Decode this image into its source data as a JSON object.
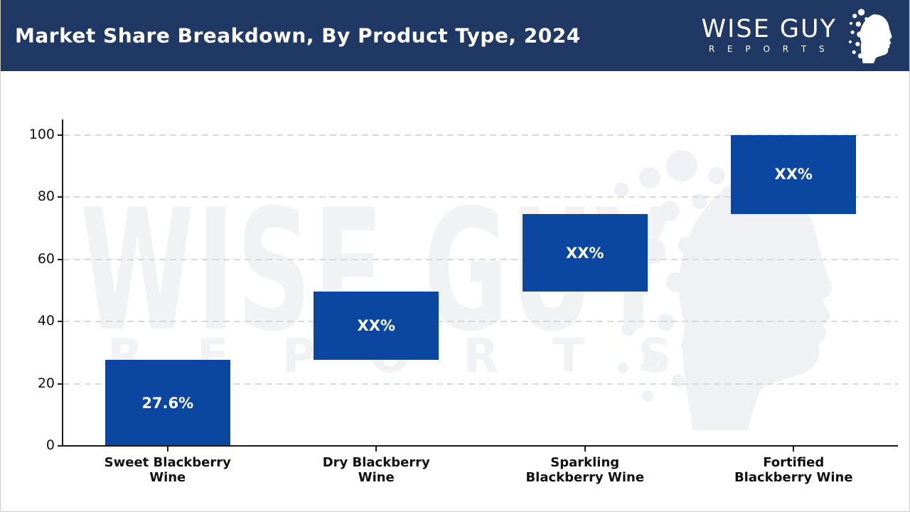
{
  "header": {
    "title": "Market Share Breakdown, By Product Type, 2024",
    "bg_color": "#1f3864",
    "logo": {
      "line1": "WISE GUY",
      "line2": "R E P O R T S"
    }
  },
  "watermark": {
    "line1": "WISE GUY",
    "line2": "R E P O R T S"
  },
  "chart_data": {
    "type": "bar",
    "variant": "waterfall",
    "title": "Market Share Breakdown, By Product Type, 2024",
    "xlabel": "",
    "ylabel": "",
    "categories": [
      "Sweet Blackberry\nWine",
      "Dry Blackberry\nWine",
      "Sparkling\nBlackberry Wine",
      "Fortified\nBlackberry Wine"
    ],
    "segments": [
      {
        "start": 0,
        "end": 27.6,
        "label": "27.6%"
      },
      {
        "start": 27.6,
        "end": 49.6,
        "label": "XX%"
      },
      {
        "start": 49.6,
        "end": 74.6,
        "label": "XX%"
      },
      {
        "start": 74.6,
        "end": 100,
        "label": "XX%"
      }
    ],
    "yticks": [
      0,
      20,
      40,
      60,
      80,
      100
    ],
    "ylim": [
      0,
      105
    ],
    "grid": "horizontal-dashed",
    "bar_color": "#0b47a1",
    "bar_label_color": "#ffffff",
    "gridline_color": "#d9d9d9",
    "legend": "none"
  }
}
